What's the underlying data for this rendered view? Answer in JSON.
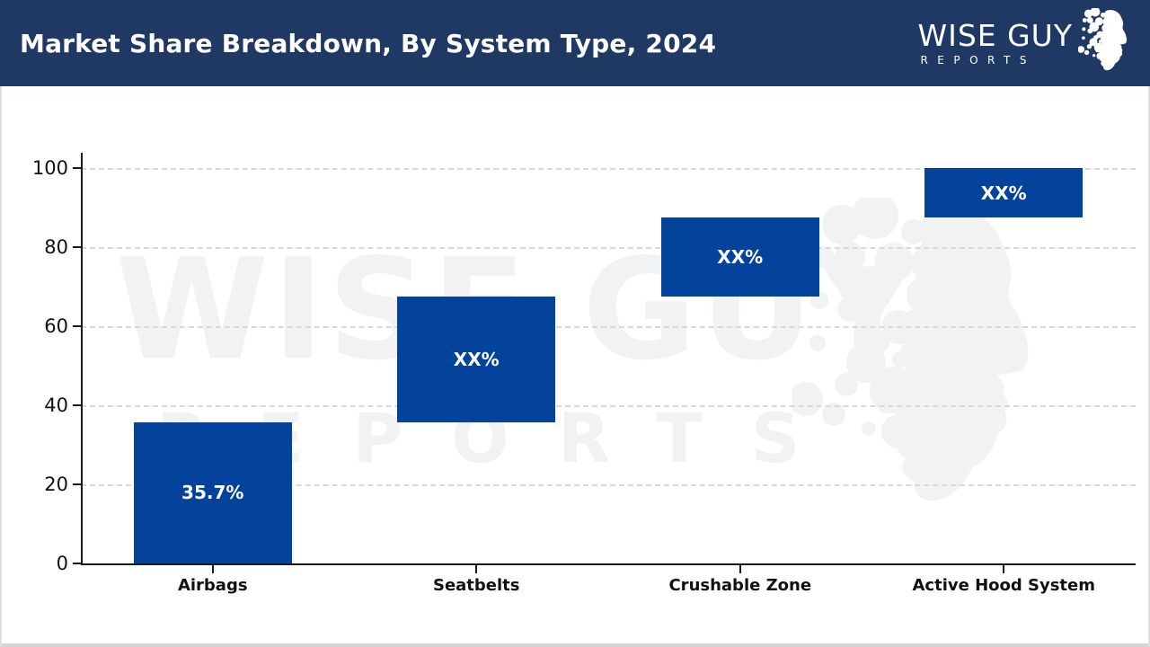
{
  "header": {
    "title": "Market Share Breakdown, By System Type, 2024",
    "logo": {
      "wordmark": "WISE GUY",
      "subtext": "REPORTS"
    }
  },
  "watermark": {
    "wordmark": "WISE GUY",
    "subtext": "REPORTS"
  },
  "chart_data": {
    "type": "bar",
    "subtype": "waterfall",
    "title": "Market Share Breakdown, By System Type, 2024",
    "categories": [
      "Airbags",
      "Seatbelts",
      "Crushable Zone",
      "Active Hood System"
    ],
    "segments": [
      {
        "category": "Airbags",
        "start": 0,
        "end": 35.7,
        "label": "35.7%"
      },
      {
        "category": "Seatbelts",
        "start": 35.7,
        "end": 67.6,
        "label": "XX%"
      },
      {
        "category": "Crushable Zone",
        "start": 67.6,
        "end": 87.5,
        "label": "XX%"
      },
      {
        "category": "Active Hood System",
        "start": 87.5,
        "end": 100,
        "label": "XX%"
      }
    ],
    "yticks": [
      0,
      20,
      40,
      60,
      80,
      100
    ],
    "ylim": [
      0,
      104
    ],
    "xlabel": "",
    "ylabel": "",
    "grid": true,
    "legend": false,
    "bar_color": "#04439C",
    "bar_label_color": "#FFFFFF",
    "header_color": "#1F3864",
    "axis_color": "#1A1A1A",
    "grid_color": "#D9D9D9"
  }
}
